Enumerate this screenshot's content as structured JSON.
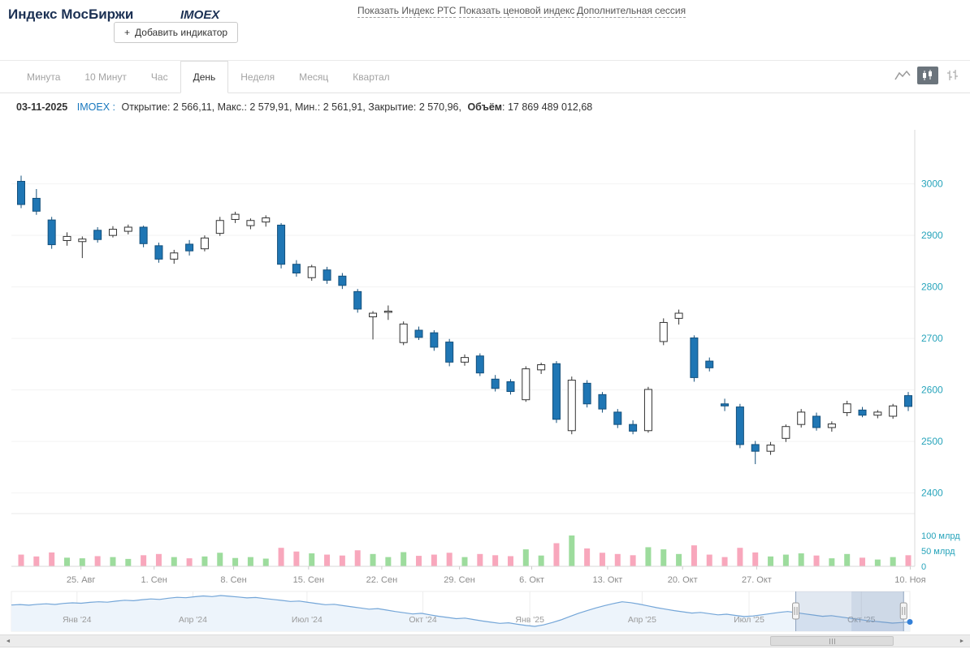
{
  "header": {
    "title": "Индекс МосБиржи",
    "symbol": "IMOEX",
    "plus_icon": "+",
    "add_indicator_button": "Добавить индикатор",
    "links": [
      {
        "label": "Показать Индекс РТС"
      },
      {
        "label": "Показать ценовой индекс"
      },
      {
        "label": "Дополнительная сессия"
      }
    ]
  },
  "toolbar": {
    "timeframes": [
      "Минута",
      "10 Минут",
      "Час",
      "День",
      "Неделя",
      "Месяц",
      "Квартал"
    ],
    "active_timeframe": "День",
    "chart_type_icons": [
      "line-chart-icon",
      "candlestick-icon",
      "ohlc-bars-icon"
    ],
    "active_chart_type": "candlestick-icon"
  },
  "info_bar": {
    "date": "03-11-2025",
    "symbol_text": "IMOEX :",
    "open": "2 566,11",
    "high": "2 579,91",
    "low": "2 561,91",
    "close": "2 570,96",
    "volume": "17 869 489 012,68",
    "ohlc_text": "Открытие: 2 566,11, Макс.: 2 579,91, Мин.: 2 561,91, Закрытие: 2 570,96,",
    "volume_label": "Объём",
    "volume_value": ": 17 869 489 012,68"
  },
  "chart_data": [
    {
      "id": "main",
      "type": "candlestick",
      "title": "Индекс МосБиржи (IMOEX), День",
      "y_axis": {
        "ticks": [
          2400,
          2500,
          2600,
          2700,
          2800,
          2900,
          3000
        ],
        "range": [
          2360,
          3105
        ]
      },
      "x_ticks": [
        {
          "label": "25. Авг",
          "pos": 0.077
        },
        {
          "label": "1. Сен",
          "pos": 0.158
        },
        {
          "label": "8. Сен",
          "pos": 0.246
        },
        {
          "label": "15. Сен",
          "pos": 0.329
        },
        {
          "label": "22. Сен",
          "pos": 0.41
        },
        {
          "label": "29. Сен",
          "pos": 0.496
        },
        {
          "label": "6. Окт",
          "pos": 0.576
        },
        {
          "label": "13. Окт",
          "pos": 0.66
        },
        {
          "label": "20. Окт",
          "pos": 0.743
        },
        {
          "label": "27. Окт",
          "pos": 0.825
        },
        {
          "label": "10. Ноя",
          "pos": 0.995
        }
      ],
      "candles_format": [
        "open",
        "high",
        "low",
        "close",
        "volume_mlrd"
      ],
      "candles": [
        [
          3005,
          3016,
          2953,
          2960,
          38
        ],
        [
          2972,
          2990,
          2940,
          2947,
          32
        ],
        [
          2930,
          2936,
          2874,
          2882,
          45
        ],
        [
          2890,
          2906,
          2880,
          2898,
          28
        ],
        [
          2888,
          2898,
          2856,
          2893,
          26
        ],
        [
          2910,
          2916,
          2886,
          2892,
          33
        ],
        [
          2900,
          2918,
          2896,
          2912,
          30
        ],
        [
          2908,
          2921,
          2902,
          2916,
          24
        ],
        [
          2916,
          2919,
          2877,
          2884,
          36
        ],
        [
          2880,
          2886,
          2847,
          2854,
          40
        ],
        [
          2854,
          2872,
          2845,
          2866,
          30
        ],
        [
          2883,
          2891,
          2861,
          2870,
          26
        ],
        [
          2874,
          2900,
          2869,
          2895,
          32
        ],
        [
          2904,
          2936,
          2899,
          2929,
          44
        ],
        [
          2931,
          2946,
          2924,
          2941,
          27
        ],
        [
          2919,
          2933,
          2912,
          2929,
          30
        ],
        [
          2926,
          2939,
          2917,
          2934,
          25
        ],
        [
          2920,
          2924,
          2836,
          2844,
          60
        ],
        [
          2844,
          2852,
          2820,
          2827,
          48
        ],
        [
          2818,
          2843,
          2812,
          2839,
          42
        ],
        [
          2833,
          2839,
          2806,
          2813,
          38
        ],
        [
          2821,
          2827,
          2796,
          2803,
          35
        ],
        [
          2791,
          2796,
          2750,
          2757,
          52
        ],
        [
          2742,
          2753,
          2698,
          2749,
          40
        ],
        [
          2751,
          2764,
          2736,
          2753,
          30
        ],
        [
          2692,
          2733,
          2687,
          2728,
          46
        ],
        [
          2716,
          2723,
          2697,
          2702,
          34
        ],
        [
          2711,
          2716,
          2676,
          2683,
          38
        ],
        [
          2693,
          2699,
          2646,
          2654,
          44
        ],
        [
          2654,
          2669,
          2647,
          2663,
          30
        ],
        [
          2666,
          2671,
          2627,
          2633,
          40
        ],
        [
          2621,
          2629,
          2597,
          2603,
          36
        ],
        [
          2616,
          2621,
          2591,
          2597,
          33
        ],
        [
          2581,
          2646,
          2577,
          2641,
          55
        ],
        [
          2639,
          2653,
          2631,
          2649,
          35
        ],
        [
          2651,
          2656,
          2536,
          2543,
          75
        ],
        [
          2521,
          2626,
          2514,
          2619,
          100
        ],
        [
          2613,
          2619,
          2566,
          2573,
          58
        ],
        [
          2591,
          2596,
          2556,
          2563,
          44
        ],
        [
          2557,
          2563,
          2526,
          2533,
          40
        ],
        [
          2533,
          2541,
          2514,
          2520,
          36
        ],
        [
          2521,
          2606,
          2517,
          2601,
          62
        ],
        [
          2694,
          2739,
          2687,
          2731,
          55
        ],
        [
          2739,
          2756,
          2727,
          2749,
          40
        ],
        [
          2701,
          2706,
          2616,
          2624,
          68
        ],
        [
          2656,
          2663,
          2636,
          2643,
          38
        ],
        [
          2573,
          2583,
          2559,
          2569,
          30
        ],
        [
          2567,
          2573,
          2487,
          2494,
          60
        ],
        [
          2494,
          2501,
          2456,
          2481,
          45
        ],
        [
          2481,
          2499,
          2474,
          2493,
          32
        ],
        [
          2506,
          2533,
          2499,
          2529,
          38
        ],
        [
          2533,
          2563,
          2527,
          2557,
          42
        ],
        [
          2549,
          2556,
          2521,
          2527,
          35
        ],
        [
          2527,
          2539,
          2519,
          2534,
          26
        ],
        [
          2556,
          2579,
          2549,
          2573,
          40
        ],
        [
          2561,
          2567,
          2547,
          2551,
          28
        ],
        [
          2551,
          2561,
          2545,
          2557,
          22
        ],
        [
          2549,
          2573,
          2544,
          2569,
          30
        ],
        [
          2589,
          2596,
          2559,
          2568,
          36
        ]
      ],
      "volume_axis": {
        "labels": [
          "100 млрд",
          "50 млрд",
          "0"
        ],
        "values": [
          100,
          50,
          0
        ],
        "unit": "млрд"
      },
      "colors": {
        "up_fill": "#ffffff",
        "up_stroke": "#333333",
        "down_fill": "#1f76b4",
        "down_stroke": "#14507c",
        "vol_up": "#9ddc9d",
        "vol_down": "#f8a7bc",
        "axis_label": "#27a4bb",
        "date_label": "#8c8c8c"
      }
    },
    {
      "id": "navigator",
      "type": "area",
      "x_labels": [
        {
          "label": "Янв '24",
          "pos": 0.073
        },
        {
          "label": "Апр '24",
          "pos": 0.202
        },
        {
          "label": "Июл '24",
          "pos": 0.329
        },
        {
          "label": "Окт '24",
          "pos": 0.458
        },
        {
          "label": "Янв '25",
          "pos": 0.577
        },
        {
          "label": "Апр '25",
          "pos": 0.702
        },
        {
          "label": "Июл '25",
          "pos": 0.821
        },
        {
          "label": "Окт '25",
          "pos": 0.946
        }
      ],
      "values": [
        3150,
        3165,
        3145,
        3175,
        3190,
        3170,
        3205,
        3225,
        3210,
        3240,
        3260,
        3245,
        3280,
        3310,
        3295,
        3330,
        3355,
        3340,
        3380,
        3410,
        3395,
        3430,
        3455,
        3435,
        3470,
        3445,
        3420,
        3390,
        3405,
        3370,
        3340,
        3305,
        3270,
        3285,
        3240,
        3200,
        3160,
        3175,
        3130,
        3090,
        3050,
        3010,
        3030,
        2980,
        2930,
        2890,
        2850,
        2870,
        2820,
        2770,
        2730,
        2690,
        2710,
        2660,
        2610,
        2570,
        2530,
        2550,
        2500,
        2460,
        2430,
        2480,
        2560,
        2650,
        2760,
        2870,
        2960,
        3050,
        3130,
        3200,
        3260,
        3230,
        3180,
        3120,
        3060,
        3010,
        2960,
        2920,
        2880,
        2900,
        2860,
        2820,
        2840,
        2800,
        2760,
        2780,
        2820,
        2860,
        2900,
        2930,
        2890,
        2850,
        2810,
        2770,
        2790,
        2750,
        2710,
        2670,
        2630,
        2600,
        2570,
        2540,
        2560,
        2580
      ],
      "selection": {
        "from": 0.873,
        "to": 0.993
      },
      "colors": {
        "line": "#74a6d8",
        "fill": "#edf4fb",
        "dot": "#3380d8",
        "selection": "rgba(120,150,190,0.22)",
        "label": "#9a9a9a"
      }
    }
  ],
  "scrollbar": {
    "left_arrow": "◄",
    "right_arrow": "►"
  }
}
